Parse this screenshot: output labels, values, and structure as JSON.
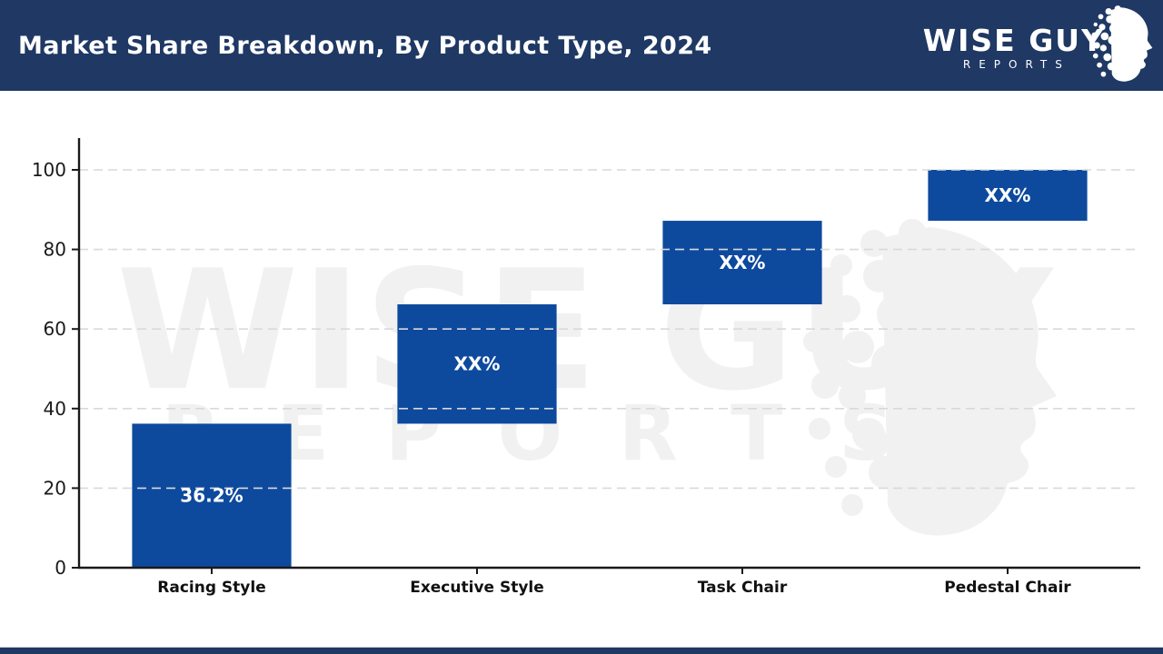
{
  "header": {
    "title": "Market Share Breakdown, By Product Type, 2024",
    "logo": {
      "line1": "WISE GUY",
      "line2": "REPORTS"
    }
  },
  "watermark": {
    "line1": "WISE GUY",
    "line2": "REPORTS"
  },
  "colors": {
    "header_bg": "#1f3864",
    "bar": "#0d4a9e",
    "bar_label": "#ffffff",
    "grid": "#d9d9d9",
    "axis": "#1a1a1a",
    "tick_label": "#1a1a1a",
    "category_label": "#111111",
    "watermark": "#f1f1f1",
    "footer": "#1f3864"
  },
  "chart_data": {
    "type": "bar",
    "subtype": "waterfall",
    "title": "Market Share Breakdown, By Product Type, 2024",
    "categories": [
      "Racing Style",
      "Executive Style",
      "Task Chair",
      "Pedestal Chair"
    ],
    "segments": [
      {
        "category": "Racing Style",
        "start": 0,
        "end": 36.2,
        "label": "36.2%"
      },
      {
        "category": "Executive Style",
        "start": 36.2,
        "end": 66.2,
        "label": "XX%"
      },
      {
        "category": "Task Chair",
        "start": 66.2,
        "end": 87.2,
        "label": "XX%"
      },
      {
        "category": "Pedestal Chair",
        "start": 87.2,
        "end": 100,
        "label": "XX%"
      }
    ],
    "yticks": [
      0,
      20,
      40,
      60,
      80,
      100
    ],
    "ylim": [
      0,
      108
    ],
    "xlabel": "",
    "ylabel": "",
    "grid": "horizontal-dashed",
    "legend": false
  }
}
